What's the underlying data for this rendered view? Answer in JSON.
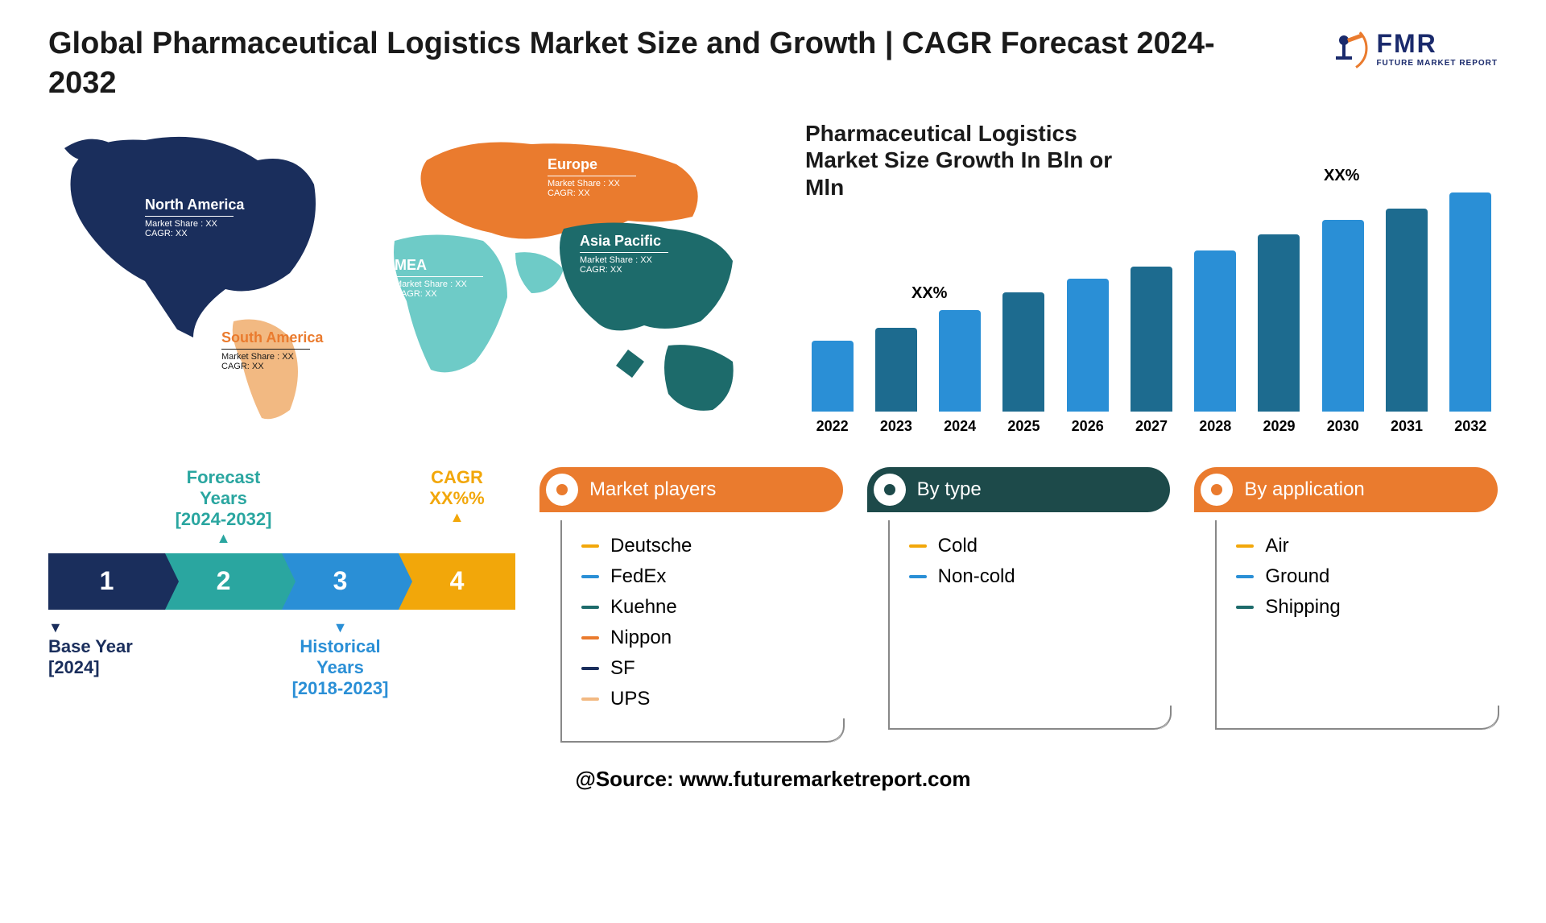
{
  "title": "Global Pharmaceutical Logistics Market Size and Growth | CAGR Forecast 2024-2032",
  "logo": {
    "fmr": "FMR",
    "sub": "FUTURE MARKET REPORT"
  },
  "colors": {
    "navy": "#1a2e5c",
    "teal": "#2aa6a0",
    "blue": "#2a8fd6",
    "orange": "#ea7b2e",
    "yellow": "#f2a70a",
    "lightteal": "#6ecbc7",
    "darkteal": "#1d6b6b",
    "bar1": "#2a8fd6",
    "bar2": "#1d6b8f",
    "text": "#1a1a1a"
  },
  "map": {
    "regions": [
      {
        "key": "north-america",
        "name": "North America",
        "share": "Market Share : XX",
        "cagr": "CAGR: XX",
        "color": "#1a2e5c"
      },
      {
        "key": "south-america",
        "name": "South America",
        "share": "Market Share : XX",
        "cagr": "CAGR: XX",
        "color": "#f2b982"
      },
      {
        "key": "europe",
        "name": "Europe",
        "share": "Market Share : XX",
        "cagr": "CAGR: XX",
        "color": "#ea7b2e"
      },
      {
        "key": "mea",
        "name": "MEA",
        "share": "Market Share : XX",
        "cagr": "CAGR: XX",
        "color": "#6ecbc7"
      },
      {
        "key": "asia-pacific",
        "name": "Asia Pacific",
        "share": "Market Share : XX",
        "cagr": "CAGR: XX",
        "color": "#1d6b6b"
      }
    ]
  },
  "chart": {
    "title": "Pharmaceutical Logistics Market Size Growth In Bln or Mln",
    "years": [
      "2022",
      "2023",
      "2024",
      "2025",
      "2026",
      "2027",
      "2028",
      "2029",
      "2030",
      "2031",
      "2032"
    ],
    "heights": [
      88,
      104,
      126,
      148,
      165,
      180,
      200,
      220,
      238,
      252,
      272
    ],
    "bar_colors": [
      "#2a8fd6",
      "#1d6b8f",
      "#2a8fd6",
      "#1d6b8f",
      "#2a8fd6",
      "#1d6b8f",
      "#2a8fd6",
      "#1d6b8f",
      "#2a8fd6",
      "#1d6b8f",
      "#2a8fd6"
    ],
    "annotations": [
      {
        "text": "XX%",
        "index": 2
      },
      {
        "text": "XX%",
        "index": 10
      }
    ]
  },
  "timeline": {
    "top": [
      {
        "label": "Forecast Years",
        "sub": "[2024-2032]",
        "color": "#2aa6a0",
        "arrow": "▲"
      },
      {
        "label": "CAGR",
        "sub": "XX%%",
        "color": "#f2a70a",
        "arrow": "▲"
      }
    ],
    "segments": [
      {
        "num": "1",
        "color": "#1a2e5c"
      },
      {
        "num": "2",
        "color": "#2aa6a0"
      },
      {
        "num": "3",
        "color": "#2a8fd6"
      },
      {
        "num": "4",
        "color": "#f2a70a"
      }
    ],
    "bottom": [
      {
        "label": "Base Year",
        "sub": "[2024]",
        "color": "#1a2e5c",
        "arrow": "▼"
      },
      {
        "label": "Historical Years",
        "sub": "[2018-2023]",
        "color": "#2a8fd6",
        "arrow": "▼"
      }
    ]
  },
  "categories": [
    {
      "title": "Market players",
      "header_color": "#ea7b2e",
      "items": [
        {
          "label": "Deutsche",
          "tick": "#f2a70a"
        },
        {
          "label": "FedEx",
          "tick": "#2a8fd6"
        },
        {
          "label": "Kuehne",
          "tick": "#1d6b6b"
        },
        {
          "label": "Nippon",
          "tick": "#ea7b2e"
        },
        {
          "label": "SF",
          "tick": "#1a2e5c"
        },
        {
          "label": "UPS",
          "tick": "#f2b982"
        }
      ]
    },
    {
      "title": "By type",
      "header_color": "#1d4a4a",
      "items": [
        {
          "label": "Cold",
          "tick": "#f2a70a"
        },
        {
          "label": "Non-cold",
          "tick": "#2a8fd6"
        }
      ]
    },
    {
      "title": "By application",
      "header_color": "#ea7b2e",
      "items": [
        {
          "label": "Air",
          "tick": "#f2a70a"
        },
        {
          "label": "Ground",
          "tick": "#2a8fd6"
        },
        {
          "label": "Shipping",
          "tick": "#1d6b6b"
        }
      ]
    }
  ],
  "source": "@Source: www.futuremarketreport.com"
}
